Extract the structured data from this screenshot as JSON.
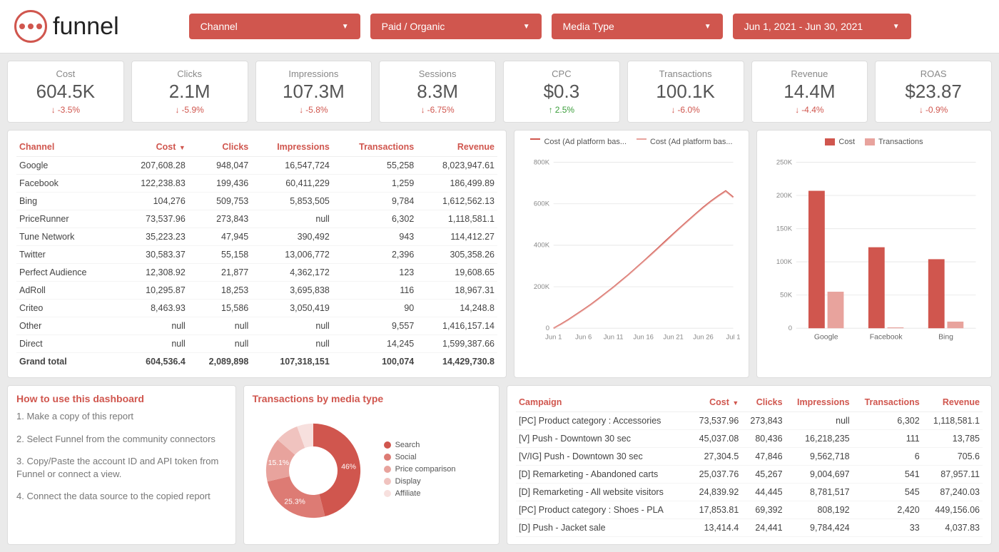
{
  "brand": {
    "name": "funnel"
  },
  "filters": {
    "channel": "Channel",
    "paid_organic": "Paid / Organic",
    "media_type": "Media Type",
    "date_range": "Jun 1, 2021 - Jun 30, 2021"
  },
  "kpis": [
    {
      "label": "Cost",
      "value": "604.5K",
      "delta": "-3.5%",
      "dir": "neg"
    },
    {
      "label": "Clicks",
      "value": "2.1M",
      "delta": "-5.9%",
      "dir": "neg"
    },
    {
      "label": "Impressions",
      "value": "107.3M",
      "delta": "-5.8%",
      "dir": "neg"
    },
    {
      "label": "Sessions",
      "value": "8.3M",
      "delta": "-6.75%",
      "dir": "neg"
    },
    {
      "label": "CPC",
      "value": "$0.3",
      "delta": "2.5%",
      "dir": "pos"
    },
    {
      "label": "Transactions",
      "value": "100.1K",
      "delta": "-6.0%",
      "dir": "neg"
    },
    {
      "label": "Revenue",
      "value": "14.4M",
      "delta": "-4.4%",
      "dir": "neg"
    },
    {
      "label": "ROAS",
      "value": "$23.87",
      "delta": "-0.9%",
      "dir": "neg"
    }
  ],
  "channel_table": {
    "headers": [
      "Channel",
      "Cost",
      "Clicks",
      "Impressions",
      "Transactions",
      "Revenue"
    ],
    "sort_col": 1,
    "rows": [
      [
        "Google",
        "207,608.28",
        "948,047",
        "16,547,724",
        "55,258",
        "8,023,947.61"
      ],
      [
        "Facebook",
        "122,238.83",
        "199,436",
        "60,411,229",
        "1,259",
        "186,499.89"
      ],
      [
        "Bing",
        "104,276",
        "509,753",
        "5,853,505",
        "9,784",
        "1,612,562.13"
      ],
      [
        "PriceRunner",
        "73,537.96",
        "273,843",
        "null",
        "6,302",
        "1,118,581.1"
      ],
      [
        "Tune Network",
        "35,223.23",
        "47,945",
        "390,492",
        "943",
        "114,412.27"
      ],
      [
        "Twitter",
        "30,583.37",
        "55,158",
        "13,006,772",
        "2,396",
        "305,358.26"
      ],
      [
        "Perfect Audience",
        "12,308.92",
        "21,877",
        "4,362,172",
        "123",
        "19,608.65"
      ],
      [
        "AdRoll",
        "10,295.87",
        "18,253",
        "3,695,838",
        "116",
        "18,967.31"
      ],
      [
        "Criteo",
        "8,463.93",
        "15,586",
        "3,050,419",
        "90",
        "14,248.8"
      ],
      [
        "Other",
        "null",
        "null",
        "null",
        "9,557",
        "1,416,157.14"
      ],
      [
        "Direct",
        "null",
        "null",
        "null",
        "14,245",
        "1,599,387.66"
      ]
    ],
    "total": [
      "Grand total",
      "604,536.4",
      "2,089,898",
      "107,318,151",
      "100,074",
      "14,429,730.8"
    ]
  },
  "line_chart": {
    "type": "line",
    "legend": [
      "Cost (Ad platform bas...",
      "Cost (Ad platform bas..."
    ],
    "colors": [
      "#d0564e",
      "#e8a39d"
    ],
    "y_ticks": [
      "800K",
      "600K",
      "400K",
      "200K",
      "0"
    ],
    "x_ticks": [
      "Jun 1",
      "Jun 6",
      "Jun 11",
      "Jun 16",
      "Jun 21",
      "Jun 26",
      "Jul 1"
    ],
    "y_max": 800,
    "series": [
      [
        0,
        20,
        42,
        66,
        90,
        115,
        142,
        170,
        198,
        228,
        258,
        290,
        322,
        355,
        388,
        422,
        455,
        488,
        520,
        552,
        583,
        612,
        638,
        662,
        632
      ],
      [
        0,
        18,
        40,
        64,
        88,
        113,
        140,
        168,
        196,
        226,
        256,
        288,
        320,
        352,
        385,
        418,
        452,
        485,
        517,
        549,
        580,
        609,
        635,
        659,
        629
      ]
    ],
    "background": "#ffffff",
    "grid_color": "#e8e8e8"
  },
  "bar_chart": {
    "type": "bar-grouped",
    "legend": [
      "Cost",
      "Transactions"
    ],
    "colors": [
      "#d0564e",
      "#e8a39d"
    ],
    "y_ticks": [
      "250K",
      "200K",
      "150K",
      "100K",
      "50K",
      "0"
    ],
    "y_max": 250,
    "categories": [
      "Google",
      "Facebook",
      "Bing"
    ],
    "series": {
      "Cost": [
        207,
        122,
        104
      ],
      "Transactions": [
        55,
        1.3,
        10
      ]
    },
    "background": "#ffffff"
  },
  "howto": {
    "title": "How to use this dashboard",
    "steps": [
      "1. Make a copy of this report",
      "2. Select Funnel from the community connectors",
      "3. Copy/Paste the account ID and API token from Funnel or connect a view.",
      "4. Connect the data source to the copied report"
    ]
  },
  "donut": {
    "title": "Transactions by media type",
    "slices": [
      {
        "label": "Search",
        "value": 46,
        "color": "#d0564e",
        "show_label": "46%"
      },
      {
        "label": "Social",
        "value": 25.3,
        "color": "#dd7b74",
        "show_label": "25.3%"
      },
      {
        "label": "Price comparison",
        "value": 15.1,
        "color": "#e8a39d",
        "show_label": "15.1%"
      },
      {
        "label": "Display",
        "value": 8,
        "color": "#f0c3bf",
        "show_label": ""
      },
      {
        "label": "Affiliate",
        "value": 5.6,
        "color": "#f7e0de",
        "show_label": ""
      }
    ]
  },
  "campaign_table": {
    "headers": [
      "Campaign",
      "Cost",
      "Clicks",
      "Impressions",
      "Transactions",
      "Revenue"
    ],
    "sort_col": 1,
    "rows": [
      [
        "[PC] Product category : Accessories",
        "73,537.96",
        "273,843",
        "null",
        "6,302",
        "1,118,581.1"
      ],
      [
        "[V] Push - Downtown 30 sec",
        "45,037.08",
        "80,436",
        "16,218,235",
        "111",
        "13,785"
      ],
      [
        "[V/IG] Push - Downtown 30 sec",
        "27,304.5",
        "47,846",
        "9,562,718",
        "6",
        "705.6"
      ],
      [
        "[D] Remarketing - Abandoned carts",
        "25,037.76",
        "45,267",
        "9,004,697",
        "541",
        "87,957.11"
      ],
      [
        "[D] Remarketing - All website visitors",
        "24,839.92",
        "44,445",
        "8,781,517",
        "545",
        "87,240.03"
      ],
      [
        "[PC] Product category : Shoes - PLA",
        "17,853.81",
        "69,392",
        "808,192",
        "2,420",
        "449,156.06"
      ],
      [
        "[D] Push - Jacket sale",
        "13,414.4",
        "24,441",
        "9,784,424",
        "33",
        "4,037.83"
      ]
    ]
  }
}
